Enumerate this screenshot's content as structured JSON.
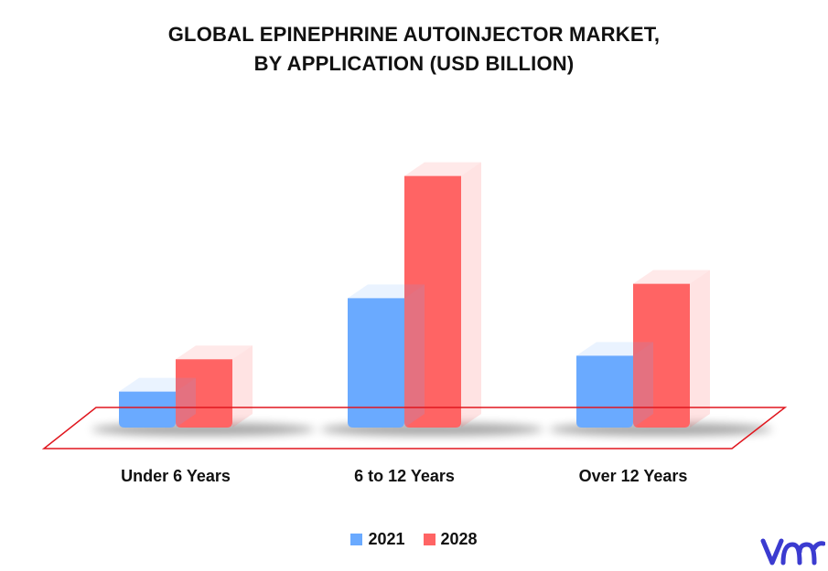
{
  "chart_data": {
    "type": "bar",
    "title": [
      "GLOBAL EPINEPHRINE AUTOINJECTOR MARKET,",
      "BY APPLICATION (USD BILLION)"
    ],
    "categories": [
      "Under 6 Years",
      "6 to 12 Years",
      "Over 12 Years"
    ],
    "series": [
      {
        "name": "2021",
        "color": "#6aaaff",
        "values": [
          1.0,
          3.6,
          2.0
        ]
      },
      {
        "name": "2028",
        "color": "#ff6464",
        "values": [
          1.9,
          7.0,
          4.0
        ]
      }
    ],
    "ylim": [
      0,
      7.5
    ],
    "grid": false,
    "legend_position": "bottom",
    "floor_color": "#e0161e"
  },
  "logo": {
    "icon": "vmr-logo-icon",
    "color": "#3b3bd0"
  }
}
